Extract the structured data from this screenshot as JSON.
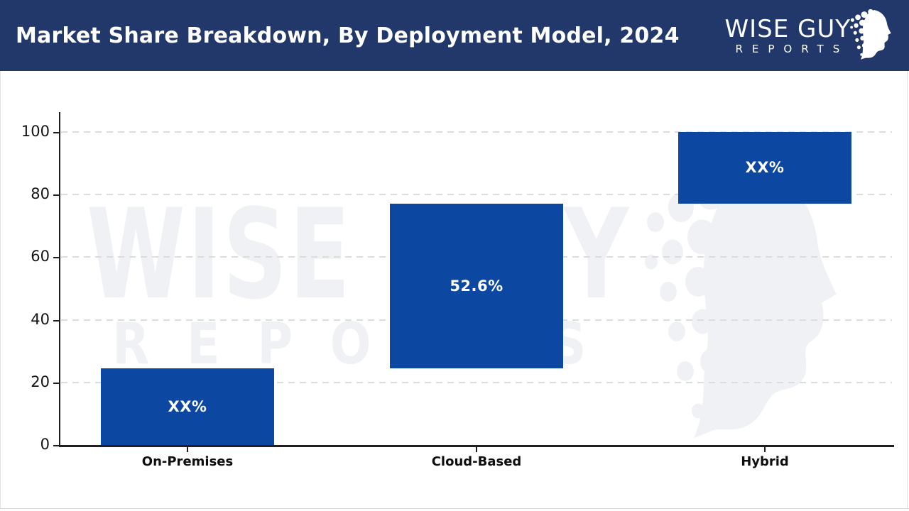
{
  "header": {
    "bg_color": "#22386B",
    "logo": {
      "line1": "WISE GUY",
      "line2": "REPORTS"
    }
  },
  "watermark": {
    "line1": "WISE GUY",
    "line2": "REPORTS"
  },
  "chart_data": {
    "type": "bar",
    "variant": "floating-waterfall",
    "title": "Market Share Breakdown, By Deployment Model, 2024",
    "categories": [
      "On-Premises",
      "Cloud-Based",
      "Hybrid"
    ],
    "segments": [
      {
        "category": "On-Premises",
        "start": 0,
        "end": 24.5,
        "label": "XX%"
      },
      {
        "category": "Cloud-Based",
        "start": 24.5,
        "end": 77.1,
        "label": "52.6%"
      },
      {
        "category": "Hybrid",
        "start": 77.1,
        "end": 100,
        "label": "XX%"
      }
    ],
    "xlabel": "",
    "ylabel": "",
    "yticks": [
      0,
      20,
      40,
      60,
      80,
      100
    ],
    "ylim": [
      0,
      106
    ],
    "grid": {
      "axis": "y",
      "style": "dashed",
      "color": "#dcdcdc"
    },
    "bar_color": "#0C47A1",
    "bar_label_color": "#ffffff",
    "axis_color": "#1f1f1f",
    "tick_label_color": "#141414",
    "legend_position": "none"
  }
}
